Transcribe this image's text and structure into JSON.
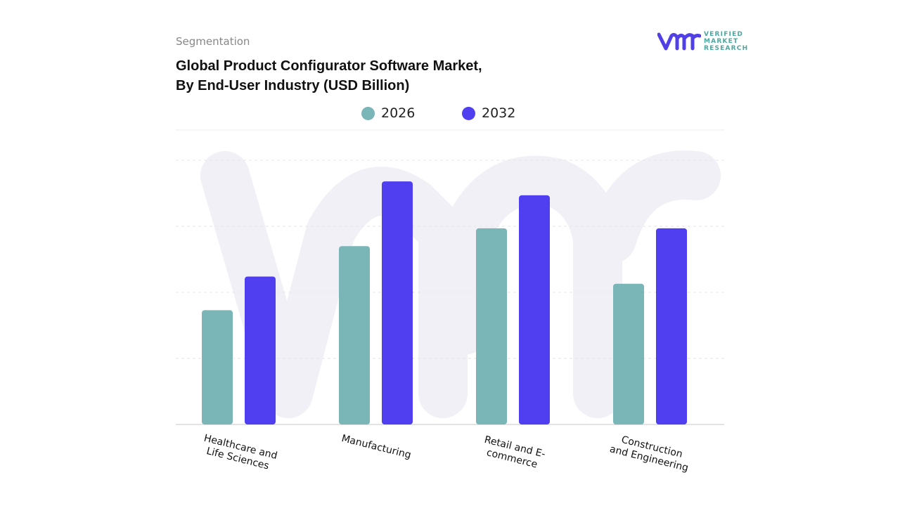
{
  "header": {
    "segment_label": "Segmentation",
    "title_line1": "Global Product Configurator Software Market,",
    "title_line2": "By End-User Industry (USD Billion)"
  },
  "logo": {
    "line1": "VERIFIED",
    "line2": "MARKET",
    "line3": "RESEARCH",
    "mark": "vmr"
  },
  "colors": {
    "2026": "#7ab5b8",
    "2032": "#4f3ff0",
    "grid": "#e6e6e6",
    "watermark": "#f1f0f6"
  },
  "chart_data": {
    "type": "bar",
    "title": "Global Product Configurator Software Market, By End-User Industry (USD Billion)",
    "categories": [
      "Healthcare and\nLife Sciences",
      "Manufacturing",
      "Retail and E-\ncommerce",
      "Construction\nand Engineering"
    ],
    "series": [
      {
        "name": "2026",
        "values": [
          1.73,
          2.7,
          2.97,
          2.13
        ]
      },
      {
        "name": "2032",
        "values": [
          2.24,
          3.68,
          3.47,
          2.97
        ]
      }
    ],
    "ylim": [
      0,
      4
    ],
    "y_ticks_shown": false,
    "grid": true,
    "legend_placement": "top-center"
  }
}
